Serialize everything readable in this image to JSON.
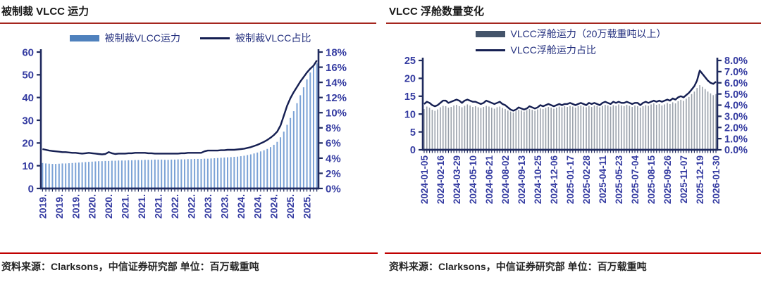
{
  "style": {
    "title_underline": "#a5261e",
    "footer_rule": "#c00000",
    "legend_text": "#232f7e",
    "tick_label": "#343ba1",
    "axis": "#1f2a5e"
  },
  "panels": [
    {
      "title": "被制裁 VLCC 运力",
      "footer": "资料来源：Clarksons，中信证券研究部 单位：百万载重吨",
      "legend": [
        {
          "swatch": "bar",
          "label": "被制裁VLCC运力",
          "color": "#4f81bd"
        },
        {
          "swatch": "line",
          "label": "被制裁VLCC占比",
          "color": "#151f52"
        }
      ],
      "chart_data": {
        "type": "bar+line",
        "x_labels": [
          "2019.",
          "2019.",
          "2019.",
          "2020.",
          "2020.",
          "2021.",
          "2021.",
          "2021.",
          "2022.",
          "2022.",
          "2023.",
          "2023.",
          "2024.",
          "2024.",
          "2024.",
          "2025.",
          "2025."
        ],
        "x_label_step": 5,
        "left_axis": {
          "min": 0,
          "max": 60,
          "labels": [
            "0",
            "10",
            "20",
            "30",
            "40",
            "50",
            "60"
          ],
          "unit": "百万载重吨"
        },
        "right_axis": {
          "min": 0,
          "max": 18,
          "labels": [
            "0%",
            "2%",
            "4%",
            "6%",
            "8%",
            "10%",
            "12%",
            "14%",
            "16%",
            "18%"
          ]
        },
        "series": [
          {
            "name": "被制裁VLCC运力",
            "type": "bar",
            "axis": "left",
            "values": [
              11.2,
              11.0,
              10.9,
              10.8,
              10.8,
              10.9,
              11.0,
              11.0,
              11.1,
              11.2,
              11.3,
              11.4,
              11.5,
              11.6,
              11.7,
              11.8,
              11.9,
              12.0,
              12.0,
              12.1,
              12.1,
              12.2,
              12.2,
              12.3,
              12.3,
              12.3,
              12.4,
              12.4,
              12.5,
              12.5,
              12.5,
              12.6,
              12.6,
              12.6,
              12.7,
              12.7,
              12.7,
              12.6,
              12.6,
              12.7,
              12.7,
              12.8,
              12.8,
              12.8,
              12.9,
              12.9,
              13.0,
              13.0,
              13.0,
              13.1,
              13.1,
              13.2,
              13.3,
              13.4,
              13.5,
              13.6,
              13.7,
              13.8,
              13.9,
              14.0,
              14.2,
              14.4,
              14.7,
              15.0,
              15.4,
              15.8,
              16.3,
              16.8,
              17.4,
              18.2,
              19.2,
              20.5,
              22.5,
              25.0,
              28.0,
              31.0,
              34.0,
              37.5,
              41.0,
              44.5,
              48.0,
              51.0,
              53.5,
              55.0
            ]
          },
          {
            "name": "被制裁VLCC占比",
            "type": "line",
            "axis": "right",
            "values": [
              5.2,
              5.1,
              5.0,
              4.95,
              4.9,
              4.85,
              4.8,
              4.8,
              4.75,
              4.7,
              4.7,
              4.65,
              4.6,
              4.65,
              4.7,
              4.65,
              4.6,
              4.55,
              4.5,
              4.55,
              4.8,
              4.65,
              4.55,
              4.6,
              4.6,
              4.6,
              4.65,
              4.65,
              4.7,
              4.7,
              4.7,
              4.7,
              4.65,
              4.65,
              4.6,
              4.6,
              4.6,
              4.6,
              4.6,
              4.6,
              4.6,
              4.6,
              4.65,
              4.65,
              4.7,
              4.7,
              4.7,
              4.7,
              4.7,
              4.9,
              5.0,
              5.0,
              5.0,
              5.0,
              5.05,
              5.05,
              5.1,
              5.1,
              5.1,
              5.15,
              5.2,
              5.25,
              5.35,
              5.45,
              5.6,
              5.75,
              5.95,
              6.15,
              6.4,
              6.7,
              7.05,
              7.5,
              8.3,
              9.6,
              10.9,
              11.9,
              12.7,
              13.4,
              14.1,
              14.7,
              15.3,
              15.8,
              16.2,
              16.9
            ]
          }
        ],
        "colors": {
          "bar": "#7ba2d6",
          "line": "#151f52",
          "axis": "#1f2a5e",
          "tick_label": "#343ba1"
        }
      }
    },
    {
      "title": "VLCC 浮舱数量变化",
      "footer": "资料来源：Clarksons，中信证券研究部 单位：百万载重吨",
      "legend": [
        {
          "swatch": "bar",
          "label": "VLCC浮舱运力（20万载重吨以上）",
          "color": "#44546a"
        },
        {
          "swatch": "line",
          "label": "VLCC浮舱运力占比",
          "color": "#151f52"
        }
      ],
      "chart_data": {
        "type": "bar+line",
        "x_labels": [
          "2024-01-05",
          "2024-02-16",
          "2024-03-29",
          "2024-05-10",
          "2024-06-21",
          "2024-08-02",
          "2024-09-13",
          "2024-10-25",
          "2024-12-06",
          "2025-01-17",
          "2025-02-28",
          "2025-04-11",
          "2025-05-23",
          "2025-07-04",
          "2025-08-15",
          "2025-09-26",
          "2025-11-07",
          "2025-12-19",
          "2026-01-30"
        ],
        "x_label_step": 6,
        "left_axis": {
          "min": 0,
          "max": 25,
          "labels": [
            "0",
            "5",
            "10",
            "15",
            "20",
            "25"
          ],
          "unit": "百万载重吨"
        },
        "right_axis": {
          "min": 0,
          "max": 8,
          "labels": [
            "0.0%",
            "1.0%",
            "2.0%",
            "3.0%",
            "4.0%",
            "5.0%",
            "6.0%",
            "7.0%",
            "8.0%"
          ]
        },
        "series": [
          {
            "name": "VLCC浮舱运力（20万载重吨以上）",
            "type": "bar",
            "axis": "left",
            "values": [
              11.4,
              12.1,
              11.8,
              11.2,
              10.9,
              11.3,
              11.9,
              12.3,
              12.2,
              11.8,
              12.0,
              12.4,
              12.6,
              12.2,
              11.9,
              12.3,
              12.7,
              12.4,
              12.0,
              12.2,
              11.9,
              11.7,
              12.0,
              12.3,
              12.1,
              11.8,
              11.5,
              11.9,
              12.1,
              11.7,
              11.4,
              11.0,
              10.7,
              10.4,
              10.8,
              11.2,
              11.0,
              10.7,
              11.1,
              11.4,
              11.2,
              10.9,
              11.3,
              11.6,
              11.4,
              11.7,
              12.0,
              11.8,
              11.5,
              11.8,
              12.1,
              11.9,
              12.2,
              12.0,
              12.3,
              12.1,
              11.8,
              12.2,
              12.4,
              12.1,
              11.9,
              12.3,
              12.0,
              12.4,
              12.2,
              11.9,
              12.3,
              12.6,
              12.4,
              12.1,
              12.5,
              12.3,
              12.7,
              12.4,
              12.2,
              12.6,
              12.3,
              12.0,
              12.4,
              12.2,
              11.8,
              12.2,
              12.5,
              12.3,
              12.7,
              13.0,
              12.6,
              12.8,
              12.4,
              12.7,
              13.1,
              12.8,
              13.3,
              13.0,
              13.6,
              14.0,
              13.7,
              14.3,
              14.8,
              15.6,
              16.3,
              17.3,
              18.1,
              17.6,
              17.0,
              16.3,
              15.8,
              15.3,
              15.6
            ]
          },
          {
            "name": "VLCC浮舱运力占比",
            "type": "line",
            "axis": "right",
            "values": [
              4.1,
              4.3,
              4.2,
              4.0,
              3.9,
              4.0,
              4.2,
              4.4,
              4.4,
              4.2,
              4.3,
              4.4,
              4.5,
              4.4,
              4.2,
              4.4,
              4.5,
              4.4,
              4.3,
              4.3,
              4.2,
              4.1,
              4.2,
              4.4,
              4.3,
              4.2,
              4.1,
              4.2,
              4.3,
              4.1,
              4.0,
              3.8,
              3.6,
              3.5,
              3.6,
              3.8,
              3.7,
              3.6,
              3.7,
              3.9,
              3.8,
              3.7,
              3.8,
              4.0,
              3.9,
              4.0,
              4.1,
              4.0,
              3.9,
              4.0,
              4.1,
              4.0,
              4.1,
              4.1,
              4.2,
              4.1,
              4.0,
              4.1,
              4.2,
              4.1,
              4.0,
              4.2,
              4.1,
              4.2,
              4.1,
              4.0,
              4.2,
              4.3,
              4.2,
              4.1,
              4.3,
              4.2,
              4.3,
              4.2,
              4.2,
              4.3,
              4.2,
              4.1,
              4.2,
              4.2,
              4.0,
              4.2,
              4.3,
              4.2,
              4.3,
              4.4,
              4.3,
              4.4,
              4.3,
              4.4,
              4.5,
              4.4,
              4.6,
              4.5,
              4.7,
              4.8,
              4.7,
              4.9,
              5.1,
              5.4,
              5.7,
              6.2,
              7.1,
              6.8,
              6.5,
              6.2,
              6.0,
              5.9,
              6.1
            ]
          }
        ],
        "colors": {
          "bar": "#9aa1ab",
          "line": "#151f52",
          "axis": "#1f2a5e",
          "tick_label": "#343ba1"
        }
      }
    }
  ]
}
